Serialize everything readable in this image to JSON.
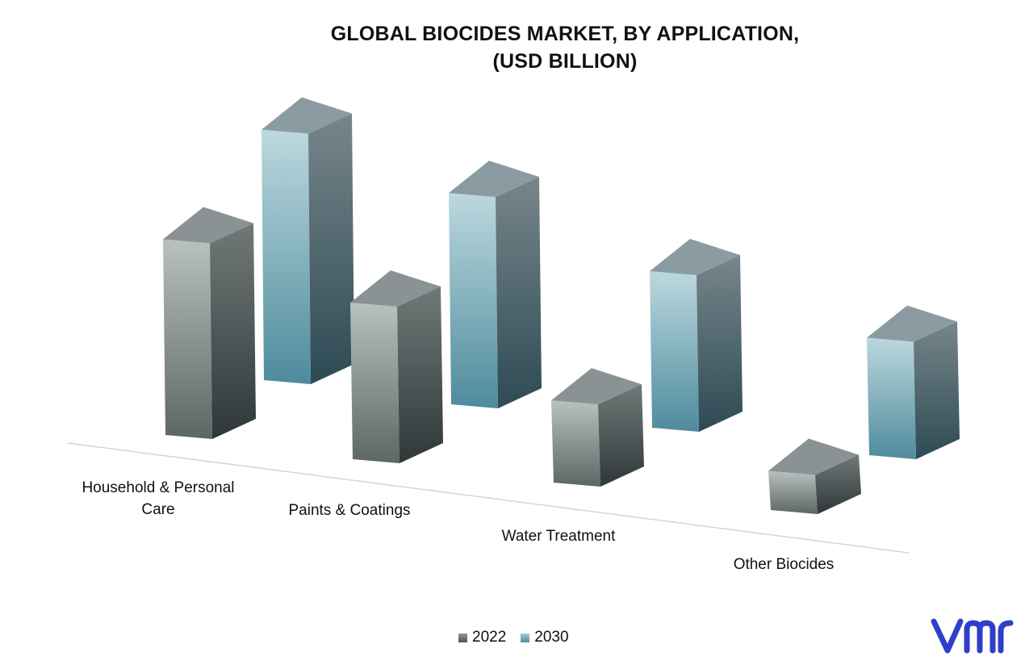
{
  "chart_data": {
    "type": "bar",
    "title_lines": [
      "GLOBAL BIOCIDES MARKET, BY APPLICATION,",
      "(USD BILLION)"
    ],
    "categories": [
      "Household & Personal Care",
      "Paints & Coatings",
      "Water Treatment",
      "Other Biocides"
    ],
    "category_label_lines": [
      [
        "Household & Personal",
        "Care"
      ],
      [
        "Paints & Coatings"
      ],
      [
        "Water Treatment"
      ],
      [
        "Other Biocides"
      ]
    ],
    "series": [
      {
        "name": "2022",
        "values": [
          5.0,
          4.0,
          2.1,
          1.0
        ],
        "color": "#6b7475"
      },
      {
        "name": "2030",
        "values": [
          6.4,
          5.4,
          4.0,
          3.0
        ],
        "color": "#7fb1c0"
      }
    ],
    "legend_position": "bottom",
    "grid": false,
    "ylim": [
      0,
      7
    ]
  },
  "logo": {
    "icon": "vmr-logo-icon",
    "color": "#2f3fc9"
  }
}
